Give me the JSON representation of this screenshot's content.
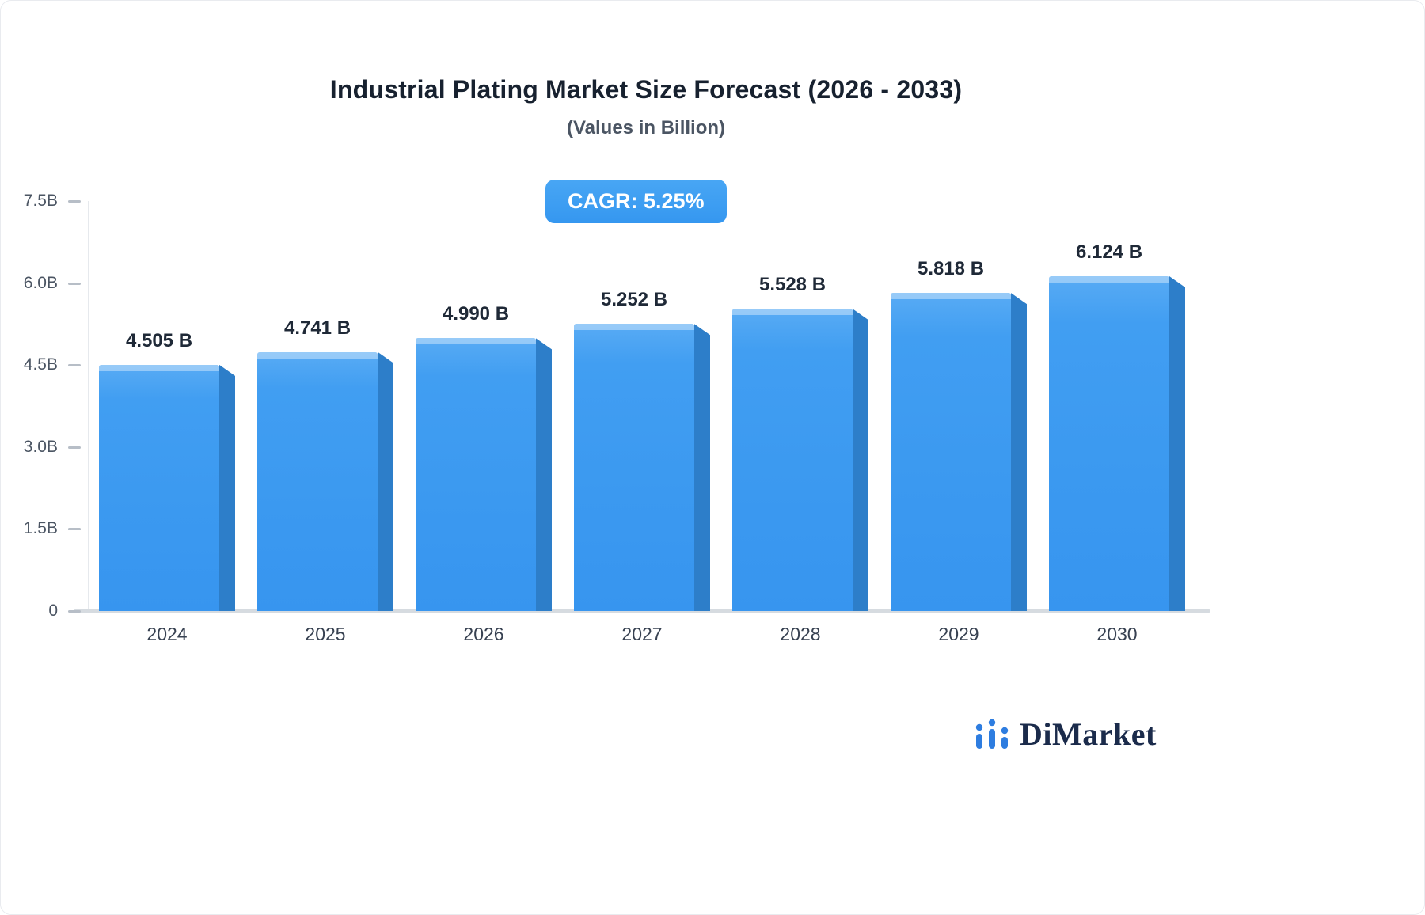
{
  "title": "Industrial Plating Market Size Forecast (2026 - 2033)",
  "subtitle": "(Values in Billion)",
  "badge": {
    "label": "CAGR: 5.25%"
  },
  "brand": {
    "name": "DiMarket",
    "icon": "mini-bar-chart-icon",
    "icon_color": "#2e7de0",
    "text_color": "#1b2b4b"
  },
  "colors": {
    "bar_face": "#3b99f0",
    "bar_side": "#2d7ec9",
    "badge_bg": "#3b9ff1",
    "axis_line": "#d6dbe0"
  },
  "chart_data": {
    "type": "bar",
    "title": "Industrial Plating Market Size Forecast (2026 - 2033)",
    "subtitle": "(Values in Billion)",
    "annotation": "CAGR: 5.25%",
    "categories": [
      "2024",
      "2025",
      "2026",
      "2027",
      "2028",
      "2029",
      "2030"
    ],
    "values": [
      4.505,
      4.741,
      4.99,
      5.252,
      5.528,
      5.818,
      6.124
    ],
    "value_labels": [
      "4.505 B",
      "4.741 B",
      "4.990 B",
      "5.252 B",
      "5.528 B",
      "5.818 B",
      "6.124 B"
    ],
    "xlabel": "",
    "ylabel": "",
    "ylim": [
      0,
      7.5
    ],
    "yticks": [
      0,
      1.5,
      3.0,
      4.5,
      6.0,
      7.5
    ],
    "ytick_labels": [
      "0",
      "1.5B",
      "3.0B",
      "4.5B",
      "6.0B",
      "7.5B"
    ],
    "grid": false,
    "legend": false,
    "unit": "Billion"
  }
}
